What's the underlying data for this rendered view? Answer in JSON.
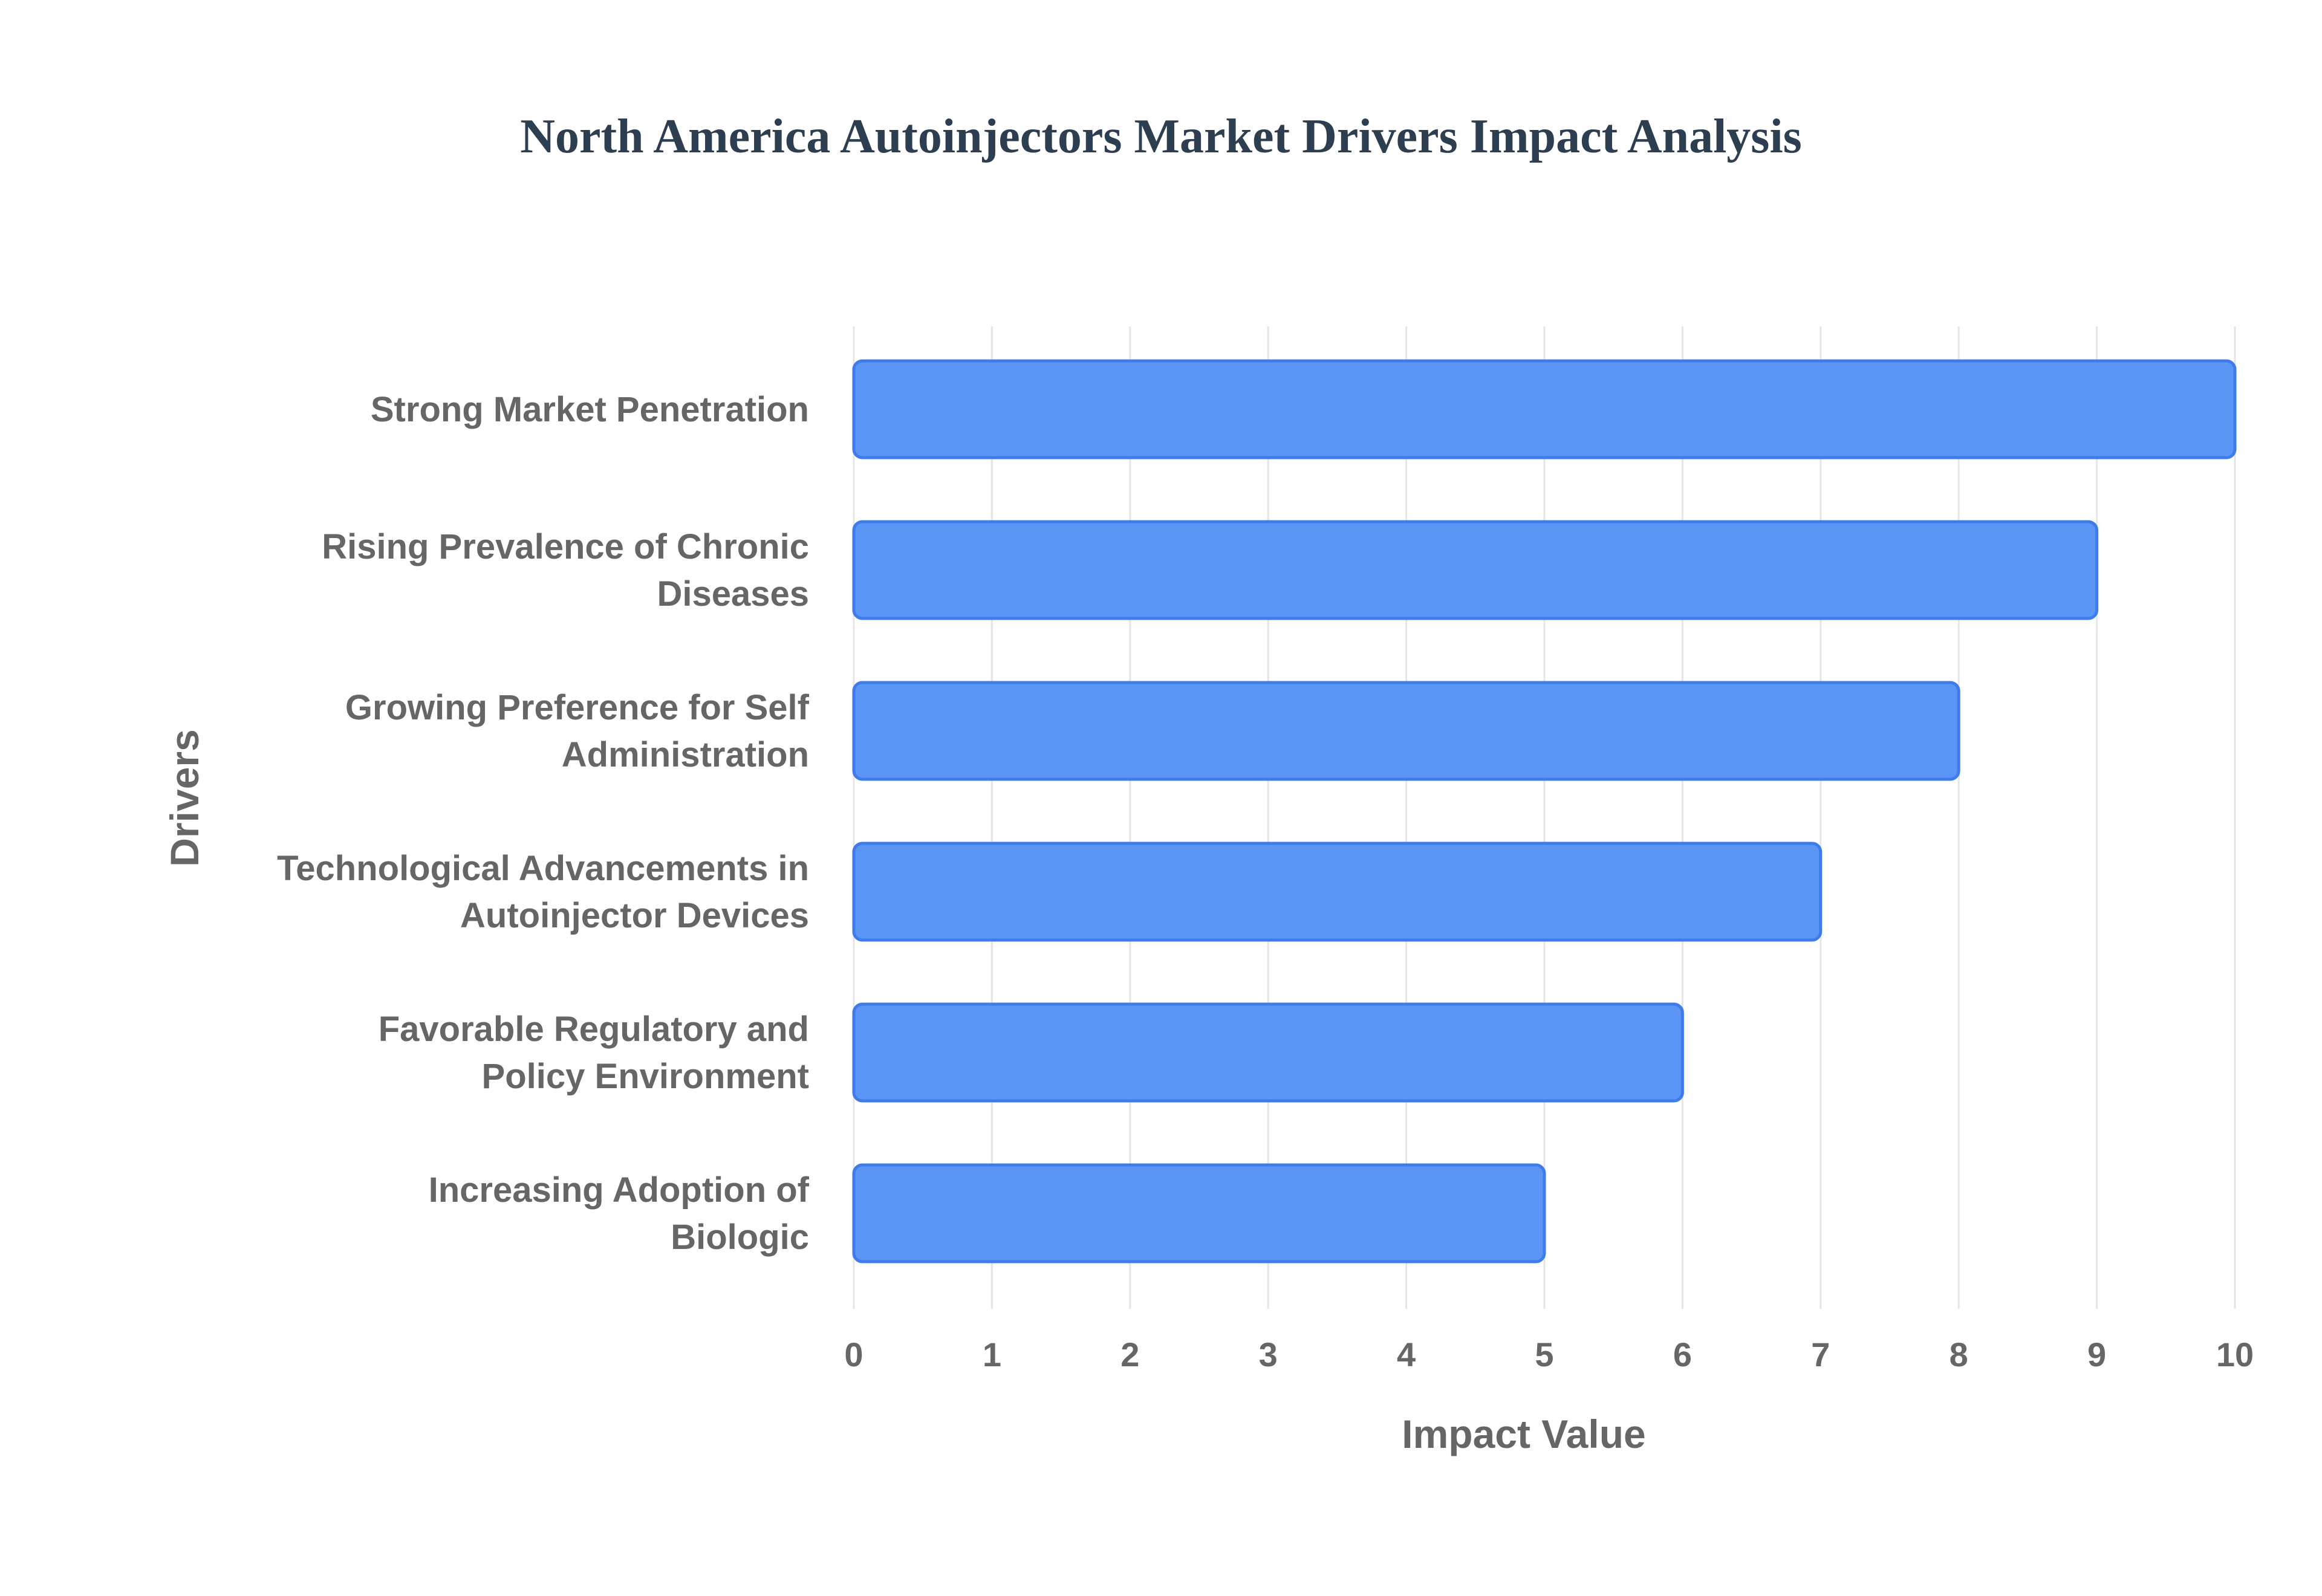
{
  "chart_data": {
    "type": "bar",
    "orientation": "horizontal",
    "title": "North America Autoinjectors Market Drivers Impact Analysis",
    "xlabel": "Impact Value",
    "ylabel": "Drivers",
    "xlim": [
      0,
      10
    ],
    "x_ticks": [
      "0",
      "1",
      "2",
      "3",
      "4",
      "5",
      "6",
      "7",
      "8",
      "9",
      "10"
    ],
    "grid": true,
    "legend": "none",
    "categories": [
      [
        "Strong Market Penetration"
      ],
      [
        "Rising Prevalence of Chronic",
        "Diseases"
      ],
      [
        "Growing Preference for Self",
        "Administration"
      ],
      [
        "Technological Advancements in",
        "Autoinjector Devices"
      ],
      [
        "Favorable Regulatory and",
        "Policy Environment"
      ],
      [
        "Increasing Adoption of",
        "Biologic"
      ]
    ],
    "values": [
      10,
      9,
      8,
      7,
      6,
      5
    ],
    "colors": {
      "bar_fill": "#5b95f6",
      "bar_stroke": "#3f7ce9",
      "title": "#2c3e50",
      "text": "#666666",
      "grid": "#e5e5e5"
    }
  }
}
